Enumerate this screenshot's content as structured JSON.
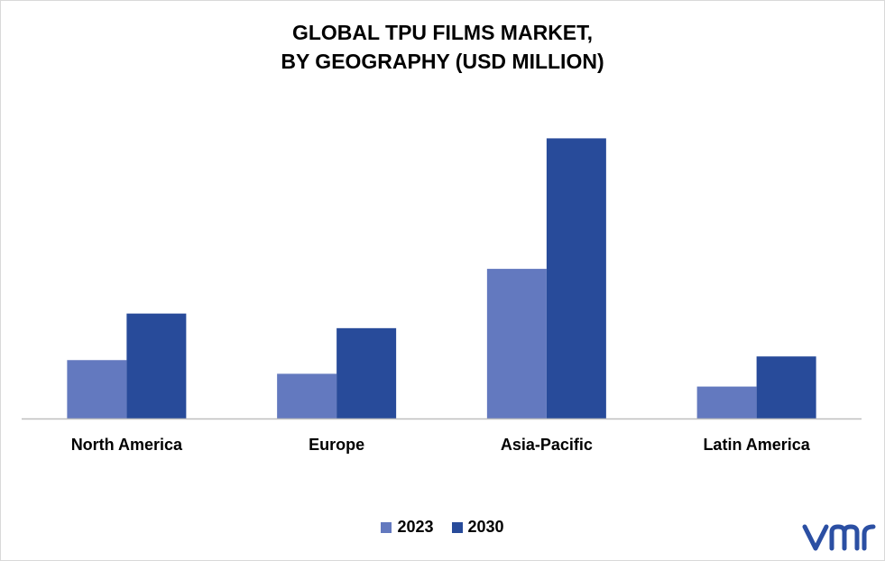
{
  "chart_data": {
    "type": "bar",
    "title_line1": "GLOBAL TPU FILMS MARKET,",
    "title_line2": "BY GEOGRAPHY (USD MILLION)",
    "categories": [
      "North America",
      "Europe",
      "Asia-Pacific",
      "Latin America"
    ],
    "series": [
      {
        "name": "2023",
        "values": [
          6.4,
          4.9,
          16.4,
          3.5
        ],
        "color": "#6379bf"
      },
      {
        "name": "2030",
        "values": [
          11.5,
          9.9,
          30.7,
          6.8
        ],
        "color": "#284b9a"
      }
    ],
    "ylim": [
      0,
      34
    ],
    "grid": false,
    "legend_position": "bottom"
  },
  "brand": {
    "logo_name": "vmr-logo",
    "logo_color": "#2b4fa3"
  }
}
